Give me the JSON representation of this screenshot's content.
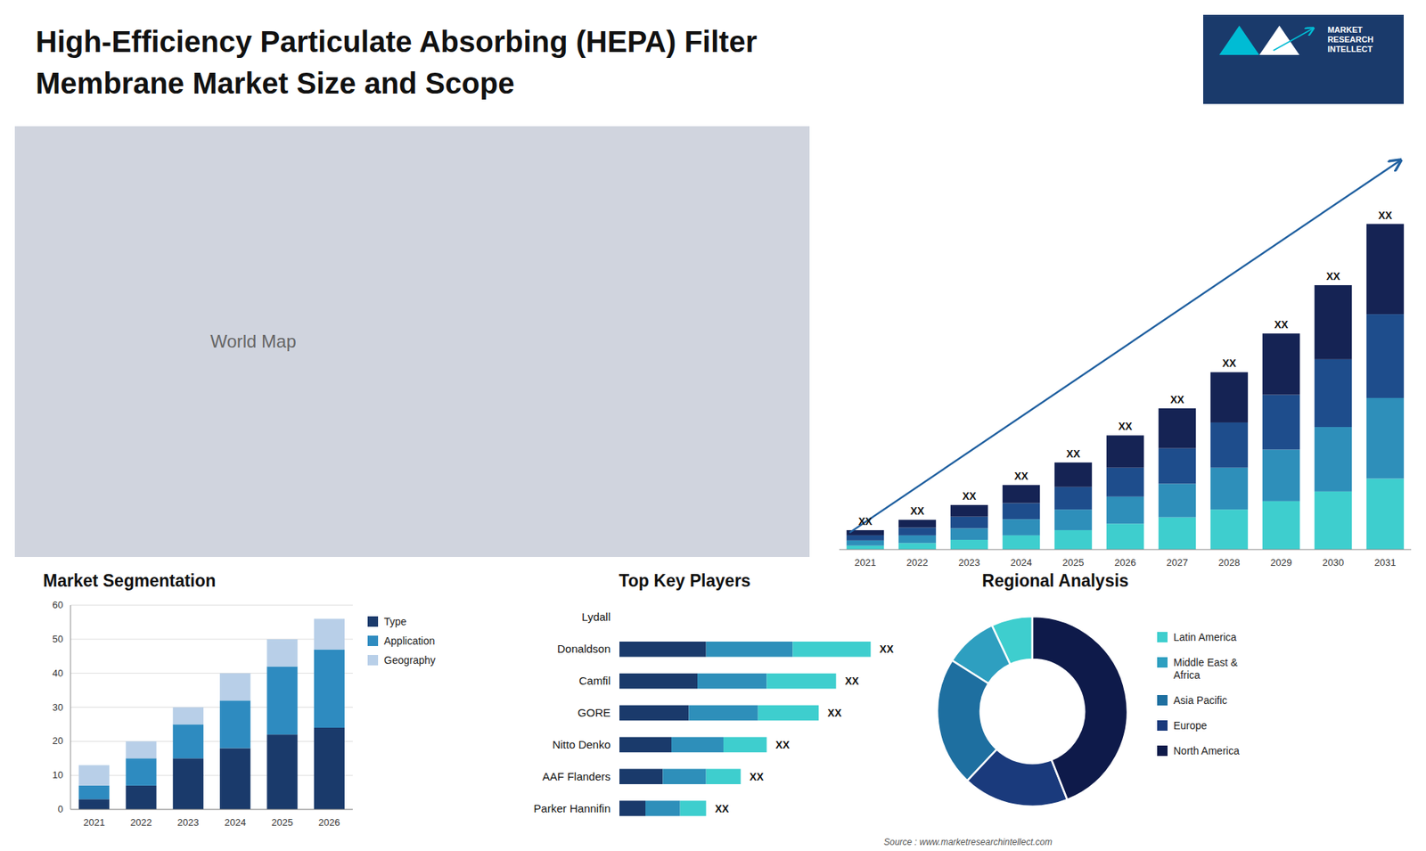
{
  "chart_data": [
    {
      "type": "bar",
      "title": "High-Efficiency Particulate Absorbing (HEPA) Filter",
      "subtitle": "Membrane Market Size and Scope",
      "logo_text": "MARKET\nRESEARCH\nINTELLECT",
      "source": "Source : www.marketresearchintellect.com",
      "categories": [
        "2021",
        "2022",
        "2023",
        "2024",
        "2025",
        "2026",
        "2027",
        "2028",
        "2029",
        "2030",
        "2031"
      ],
      "stacked": true,
      "series": [
        {
          "color": "#3ecece",
          "values": [
            0.6,
            1.0,
            1.5,
            2.2,
            3.0,
            4.0,
            5.0,
            6.2,
            7.5,
            9.0,
            11.0
          ]
        },
        {
          "color": "#2e8fba",
          "values": [
            0.8,
            1.2,
            1.8,
            2.5,
            3.2,
            4.2,
            5.2,
            6.5,
            8.0,
            10.0,
            12.5
          ]
        },
        {
          "color": "#1e4d8c",
          "values": [
            0.8,
            1.2,
            1.8,
            2.5,
            3.5,
            4.5,
            5.5,
            7.0,
            8.5,
            10.5,
            13.0
          ]
        },
        {
          "color": "#152354",
          "values": [
            0.8,
            1.2,
            1.8,
            2.8,
            3.8,
            5.0,
            6.2,
            7.8,
            9.5,
            11.5,
            14.0
          ]
        }
      ],
      "annotations": [
        "XX",
        "XX",
        "XX",
        "XX",
        "XX",
        "XX",
        "XX",
        "XX",
        "XX",
        "XX",
        "XX"
      ],
      "ylim": [
        0,
        65.65
      ],
      "tick_labels": "x",
      "grid": false
    },
    {
      "type": "map",
      "title": "World Map"
    },
    {
      "type": "bar",
      "title": "Market Segmentation",
      "categories": [
        "2021",
        "2022",
        "2023",
        "2024",
        "2025",
        "2026"
      ],
      "stacked": true,
      "series": [
        {
          "name": "Type",
          "color": "#1a3a6b",
          "values": [
            3,
            7,
            15,
            18,
            22,
            24
          ]
        },
        {
          "name": "Application",
          "color": "#2e8bc0",
          "values": [
            4,
            8,
            10,
            14,
            20,
            23
          ]
        },
        {
          "name": "Geography",
          "color": "#b8cfe8",
          "values": [
            6,
            5,
            5,
            8,
            8,
            9
          ]
        }
      ],
      "ylim": [
        0,
        60
      ],
      "yticks": [
        0,
        10,
        20,
        30,
        40,
        50,
        60
      ],
      "grid": true,
      "legend": "right"
    },
    {
      "type": "bar",
      "orientation": "horizontal",
      "title": "Top Key Players",
      "categories": [
        "Lydall",
        "Donaldson",
        "Camfil",
        "GORE",
        "Nitto Denko",
        "AAF Flanders",
        "Parker Hannifin"
      ],
      "stacked": true,
      "series": [
        {
          "color": "#1a3a6b",
          "values": [
            0,
            10,
            9,
            8,
            6,
            5,
            3
          ]
        },
        {
          "color": "#2e8fba",
          "values": [
            0,
            10,
            8,
            8,
            6,
            5,
            4
          ]
        },
        {
          "color": "#3ecece",
          "values": [
            0,
            9,
            8,
            7,
            5,
            4,
            3
          ]
        }
      ],
      "annotations": [
        null,
        "XX",
        "XX",
        "XX",
        "XX",
        "XX",
        "XX"
      ],
      "xlim": [
        0,
        30
      ],
      "tick_labels": "y",
      "grid": false
    },
    {
      "type": "donut",
      "title": "Regional Analysis",
      "categories": [
        "Latin America",
        "Middle East &\nAfrica",
        "Asia Pacific",
        "Europe",
        "North America"
      ],
      "values": [
        7,
        9,
        22,
        18,
        44
      ],
      "colors": [
        "#3ecece",
        "#2e9fc0",
        "#1e6fa0",
        "#1a3a7c",
        "#0e1a4a"
      ],
      "legend": "right"
    }
  ]
}
